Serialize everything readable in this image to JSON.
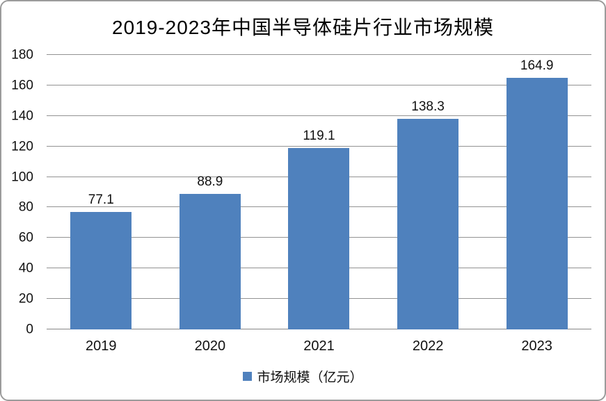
{
  "title": "2019-2023年中国半导体硅片行业市场规模",
  "legend": {
    "marker": "blue-square",
    "label": "市场规模（亿元）"
  },
  "colors": {
    "bar": "#4f81bd",
    "gridline": "#929292",
    "axis_line": "#868686",
    "border": "#9b9b9b",
    "text": "#111111",
    "background": "#ffffff"
  },
  "chart_data": {
    "type": "bar",
    "title": "2019-2023年中国半导体硅片行业市场规模",
    "categories": [
      "2019",
      "2020",
      "2021",
      "2022",
      "2023"
    ],
    "series": [
      {
        "name": "市场规模（亿元）",
        "values": [
          77.1,
          88.9,
          119.1,
          138.3,
          164.9
        ]
      }
    ],
    "data_labels": [
      "77.1",
      "88.9",
      "119.1",
      "138.3",
      "164.9"
    ],
    "xlabel": "",
    "ylabel": "",
    "ylim": [
      0,
      180
    ],
    "yticks": [
      0,
      20,
      40,
      60,
      80,
      100,
      120,
      140,
      160,
      180
    ],
    "grid": true,
    "legend_position": "bottom"
  }
}
